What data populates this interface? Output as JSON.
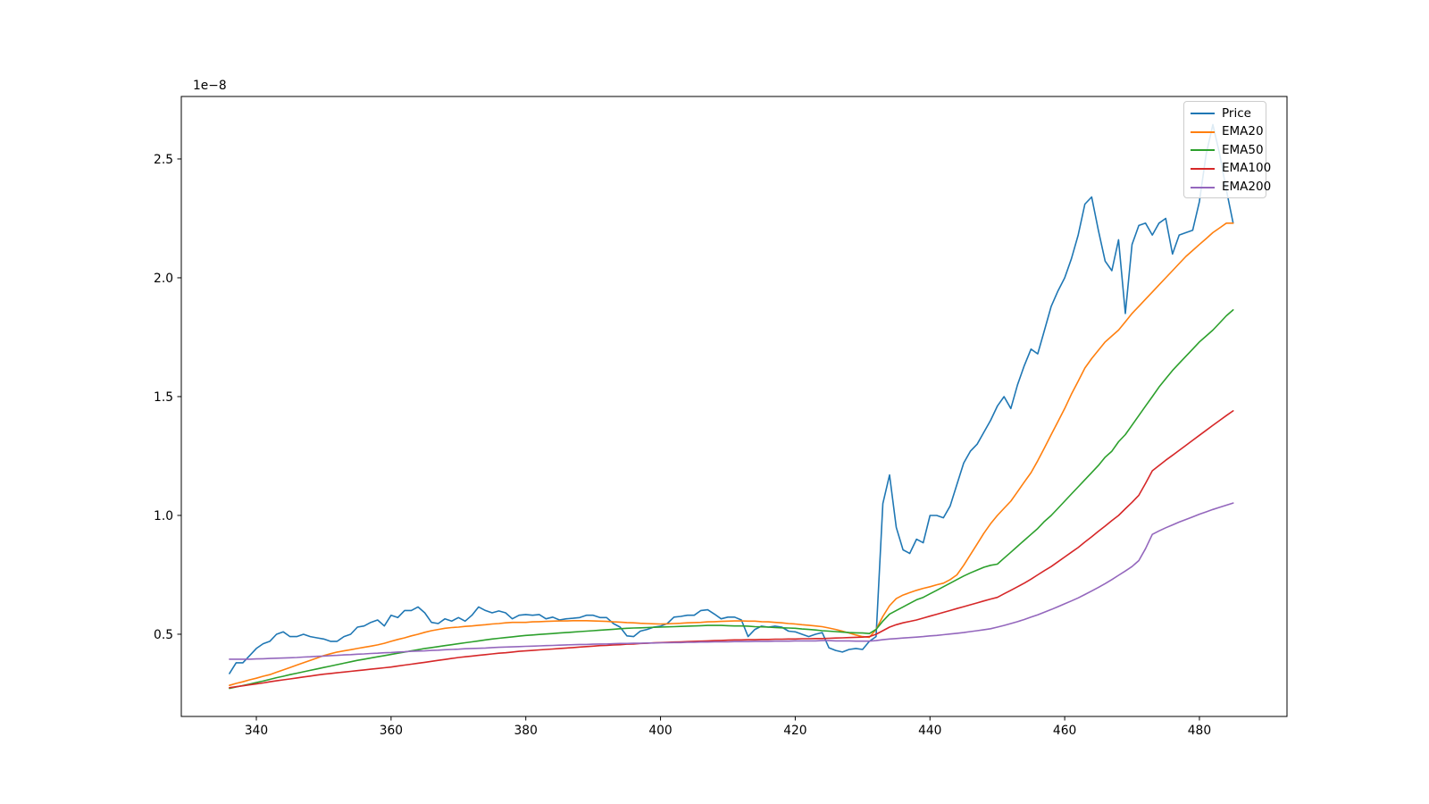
{
  "figure": {
    "background": "#ffffff"
  },
  "chart_data": {
    "type": "line",
    "title": "",
    "y_offset_label": "1e−8",
    "x_ticks": [
      340,
      360,
      380,
      400,
      420,
      440,
      460,
      480
    ],
    "y_ticks": [
      0.5,
      1.0,
      1.5,
      2.0,
      2.5
    ],
    "xlim": [
      328.86,
      493.0
    ],
    "ylim": [
      0.154,
      2.763
    ],
    "grid": false,
    "legend_position": "upper right",
    "y_unit_multiplier": "1e-8",
    "x": [
      336,
      337,
      338,
      339,
      340,
      341,
      342,
      343,
      344,
      345,
      346,
      347,
      348,
      349,
      350,
      351,
      352,
      353,
      354,
      355,
      356,
      357,
      358,
      359,
      360,
      361,
      362,
      363,
      364,
      365,
      366,
      367,
      368,
      369,
      370,
      371,
      372,
      373,
      374,
      375,
      376,
      377,
      378,
      379,
      380,
      381,
      382,
      383,
      384,
      385,
      386,
      387,
      388,
      389,
      390,
      391,
      392,
      393,
      394,
      395,
      396,
      397,
      398,
      399,
      400,
      401,
      402,
      403,
      404,
      405,
      406,
      407,
      408,
      409,
      410,
      411,
      412,
      413,
      414,
      415,
      416,
      417,
      418,
      419,
      420,
      421,
      422,
      423,
      424,
      425,
      426,
      427,
      428,
      429,
      430,
      431,
      432,
      433,
      434,
      435,
      436,
      437,
      438,
      439,
      440,
      441,
      442,
      443,
      444,
      445,
      446,
      447,
      448,
      449,
      450,
      451,
      452,
      453,
      454,
      455,
      456,
      457,
      458,
      459,
      460,
      461,
      462,
      463,
      464,
      465,
      466,
      467,
      468,
      469,
      470,
      471,
      472,
      473,
      474,
      475,
      476,
      477,
      478,
      479,
      480,
      481,
      482,
      483,
      484,
      485
    ],
    "series": [
      {
        "name": "Price",
        "color": "#1f77b4",
        "values": [
          0.335,
          0.38,
          0.38,
          0.41,
          0.44,
          0.46,
          0.47,
          0.5,
          0.51,
          0.49,
          0.49,
          0.5,
          0.49,
          0.485,
          0.48,
          0.47,
          0.47,
          0.49,
          0.5,
          0.53,
          0.535,
          0.55,
          0.56,
          0.535,
          0.58,
          0.57,
          0.6,
          0.6,
          0.615,
          0.59,
          0.55,
          0.545,
          0.565,
          0.555,
          0.57,
          0.555,
          0.58,
          0.615,
          0.6,
          0.59,
          0.598,
          0.59,
          0.565,
          0.58,
          0.583,
          0.58,
          0.583,
          0.565,
          0.572,
          0.56,
          0.565,
          0.567,
          0.57,
          0.58,
          0.58,
          0.57,
          0.57,
          0.545,
          0.53,
          0.493,
          0.49,
          0.513,
          0.52,
          0.53,
          0.534,
          0.545,
          0.572,
          0.575,
          0.58,
          0.58,
          0.6,
          0.603,
          0.585,
          0.565,
          0.572,
          0.572,
          0.56,
          0.49,
          0.52,
          0.534,
          0.53,
          0.534,
          0.53,
          0.513,
          0.51,
          0.5,
          0.49,
          0.5,
          0.507,
          0.443,
          0.432,
          0.425,
          0.436,
          0.44,
          0.436,
          0.47,
          0.49,
          1.05,
          1.17,
          0.95,
          0.855,
          0.84,
          0.9,
          0.885,
          1.0,
          1.0,
          0.99,
          1.04,
          1.13,
          1.22,
          1.27,
          1.3,
          1.35,
          1.4,
          1.46,
          1.5,
          1.45,
          1.55,
          1.63,
          1.7,
          1.68,
          1.78,
          1.88,
          1.945,
          2.0,
          2.08,
          2.18,
          2.31,
          2.34,
          2.2,
          2.07,
          2.03,
          2.16,
          1.85,
          2.14,
          2.22,
          2.23,
          2.18,
          2.23,
          2.25,
          2.1,
          2.18,
          2.19,
          2.2,
          2.32,
          2.52,
          2.645,
          2.52,
          2.37,
          2.23
        ]
      },
      {
        "name": "EMA20",
        "color": "#ff7f0e",
        "values": [
          0.285,
          0.293,
          0.3,
          0.308,
          0.315,
          0.323,
          0.33,
          0.34,
          0.35,
          0.36,
          0.37,
          0.38,
          0.39,
          0.4,
          0.41,
          0.418,
          0.425,
          0.43,
          0.435,
          0.44,
          0.445,
          0.45,
          0.455,
          0.462,
          0.47,
          0.478,
          0.485,
          0.493,
          0.5,
          0.508,
          0.515,
          0.52,
          0.525,
          0.528,
          0.53,
          0.533,
          0.535,
          0.538,
          0.54,
          0.543,
          0.545,
          0.548,
          0.55,
          0.55,
          0.55,
          0.552,
          0.553,
          0.554,
          0.555,
          0.556,
          0.556,
          0.557,
          0.557,
          0.557,
          0.556,
          0.555,
          0.554,
          0.552,
          0.551,
          0.549,
          0.548,
          0.546,
          0.545,
          0.544,
          0.543,
          0.544,
          0.545,
          0.546,
          0.548,
          0.549,
          0.55,
          0.552,
          0.553,
          0.554,
          0.555,
          0.556,
          0.556,
          0.555,
          0.555,
          0.553,
          0.552,
          0.55,
          0.548,
          0.545,
          0.543,
          0.54,
          0.538,
          0.535,
          0.532,
          0.526,
          0.52,
          0.513,
          0.505,
          0.497,
          0.49,
          0.487,
          0.52,
          0.575,
          0.62,
          0.65,
          0.665,
          0.675,
          0.685,
          0.693,
          0.7,
          0.708,
          0.715,
          0.73,
          0.75,
          0.79,
          0.835,
          0.88,
          0.925,
          0.965,
          1.0,
          1.03,
          1.06,
          1.1,
          1.14,
          1.18,
          1.23,
          1.285,
          1.34,
          1.395,
          1.45,
          1.51,
          1.565,
          1.62,
          1.66,
          1.695,
          1.73,
          1.755,
          1.78,
          1.815,
          1.85,
          1.88,
          1.91,
          1.94,
          1.97,
          2.0,
          2.03,
          2.06,
          2.09,
          2.115,
          2.14,
          2.165,
          2.19,
          2.21,
          2.23,
          2.23
        ]
      },
      {
        "name": "EMA50",
        "color": "#2ca02c",
        "values": [
          0.272,
          0.278,
          0.284,
          0.29,
          0.297,
          0.303,
          0.31,
          0.317,
          0.323,
          0.33,
          0.336,
          0.342,
          0.348,
          0.354,
          0.36,
          0.366,
          0.372,
          0.378,
          0.384,
          0.39,
          0.395,
          0.4,
          0.405,
          0.41,
          0.415,
          0.42,
          0.425,
          0.43,
          0.435,
          0.44,
          0.444,
          0.448,
          0.452,
          0.456,
          0.46,
          0.464,
          0.468,
          0.472,
          0.476,
          0.48,
          0.483,
          0.486,
          0.489,
          0.492,
          0.495,
          0.497,
          0.499,
          0.501,
          0.503,
          0.505,
          0.507,
          0.509,
          0.511,
          0.513,
          0.515,
          0.517,
          0.519,
          0.521,
          0.523,
          0.525,
          0.526,
          0.527,
          0.528,
          0.529,
          0.53,
          0.531,
          0.532,
          0.533,
          0.534,
          0.535,
          0.536,
          0.537,
          0.537,
          0.537,
          0.536,
          0.535,
          0.535,
          0.534,
          0.532,
          0.531,
          0.53,
          0.528,
          0.527,
          0.526,
          0.525,
          0.522,
          0.52,
          0.518,
          0.515,
          0.513,
          0.511,
          0.509,
          0.507,
          0.506,
          0.505,
          0.503,
          0.52,
          0.555,
          0.585,
          0.6,
          0.615,
          0.63,
          0.645,
          0.655,
          0.67,
          0.685,
          0.7,
          0.715,
          0.73,
          0.745,
          0.758,
          0.77,
          0.782,
          0.79,
          0.795,
          0.82,
          0.845,
          0.87,
          0.895,
          0.92,
          0.945,
          0.975,
          1.0,
          1.03,
          1.06,
          1.09,
          1.12,
          1.15,
          1.18,
          1.21,
          1.245,
          1.27,
          1.31,
          1.34,
          1.38,
          1.42,
          1.46,
          1.5,
          1.54,
          1.575,
          1.61,
          1.64,
          1.67,
          1.7,
          1.73,
          1.755,
          1.78,
          1.81,
          1.84,
          1.865
        ]
      },
      {
        "name": "EMA100",
        "color": "#d62728",
        "values": [
          0.275,
          0.279,
          0.283,
          0.287,
          0.291,
          0.295,
          0.3,
          0.304,
          0.308,
          0.312,
          0.316,
          0.32,
          0.324,
          0.328,
          0.332,
          0.335,
          0.338,
          0.341,
          0.344,
          0.347,
          0.35,
          0.353,
          0.356,
          0.359,
          0.362,
          0.366,
          0.37,
          0.374,
          0.378,
          0.382,
          0.386,
          0.39,
          0.394,
          0.398,
          0.402,
          0.405,
          0.408,
          0.411,
          0.414,
          0.417,
          0.42,
          0.422,
          0.425,
          0.428,
          0.43,
          0.432,
          0.434,
          0.436,
          0.438,
          0.44,
          0.442,
          0.444,
          0.446,
          0.448,
          0.45,
          0.452,
          0.453,
          0.455,
          0.456,
          0.458,
          0.459,
          0.461,
          0.462,
          0.464,
          0.465,
          0.466,
          0.467,
          0.468,
          0.469,
          0.47,
          0.471,
          0.472,
          0.473,
          0.474,
          0.475,
          0.476,
          0.476,
          0.477,
          0.477,
          0.478,
          0.478,
          0.479,
          0.479,
          0.48,
          0.48,
          0.481,
          0.481,
          0.482,
          0.482,
          0.483,
          0.484,
          0.485,
          0.486,
          0.487,
          0.488,
          0.49,
          0.5,
          0.515,
          0.53,
          0.54,
          0.548,
          0.554,
          0.56,
          0.568,
          0.576,
          0.584,
          0.592,
          0.6,
          0.608,
          0.616,
          0.624,
          0.632,
          0.64,
          0.648,
          0.655,
          0.67,
          0.685,
          0.7,
          0.715,
          0.732,
          0.75,
          0.768,
          0.785,
          0.805,
          0.825,
          0.845,
          0.865,
          0.888,
          0.91,
          0.933,
          0.955,
          0.978,
          1.0,
          1.028,
          1.055,
          1.085,
          1.135,
          1.188,
          1.21,
          1.232,
          1.253,
          1.274,
          1.295,
          1.316,
          1.337,
          1.358,
          1.379,
          1.4,
          1.42,
          1.44
        ]
      },
      {
        "name": "EMA200",
        "color": "#9467bd",
        "values": [
          0.395,
          0.395,
          0.395,
          0.395,
          0.396,
          0.397,
          0.398,
          0.399,
          0.4,
          0.401,
          0.402,
          0.404,
          0.405,
          0.407,
          0.408,
          0.41,
          0.411,
          0.413,
          0.414,
          0.416,
          0.417,
          0.419,
          0.42,
          0.422,
          0.423,
          0.425,
          0.426,
          0.428,
          0.429,
          0.43,
          0.432,
          0.433,
          0.435,
          0.436,
          0.437,
          0.439,
          0.44,
          0.441,
          0.442,
          0.444,
          0.445,
          0.446,
          0.447,
          0.448,
          0.449,
          0.45,
          0.451,
          0.452,
          0.453,
          0.454,
          0.455,
          0.456,
          0.457,
          0.457,
          0.458,
          0.459,
          0.459,
          0.46,
          0.461,
          0.461,
          0.462,
          0.462,
          0.463,
          0.463,
          0.464,
          0.464,
          0.465,
          0.465,
          0.466,
          0.466,
          0.467,
          0.467,
          0.468,
          0.468,
          0.468,
          0.469,
          0.469,
          0.469,
          0.47,
          0.47,
          0.47,
          0.471,
          0.471,
          0.471,
          0.472,
          0.472,
          0.472,
          0.472,
          0.473,
          0.473,
          0.472,
          0.472,
          0.472,
          0.471,
          0.471,
          0.471,
          0.473,
          0.477,
          0.48,
          0.482,
          0.484,
          0.486,
          0.488,
          0.49,
          0.493,
          0.495,
          0.498,
          0.501,
          0.504,
          0.507,
          0.511,
          0.515,
          0.519,
          0.523,
          0.53,
          0.537,
          0.545,
          0.553,
          0.562,
          0.572,
          0.582,
          0.593,
          0.604,
          0.616,
          0.628,
          0.64,
          0.653,
          0.667,
          0.682,
          0.697,
          0.713,
          0.73,
          0.748,
          0.766,
          0.785,
          0.81,
          0.86,
          0.92,
          0.935,
          0.948,
          0.96,
          0.972,
          0.983,
          0.994,
          1.005,
          1.015,
          1.025,
          1.034,
          1.043,
          1.052
        ]
      }
    ]
  }
}
